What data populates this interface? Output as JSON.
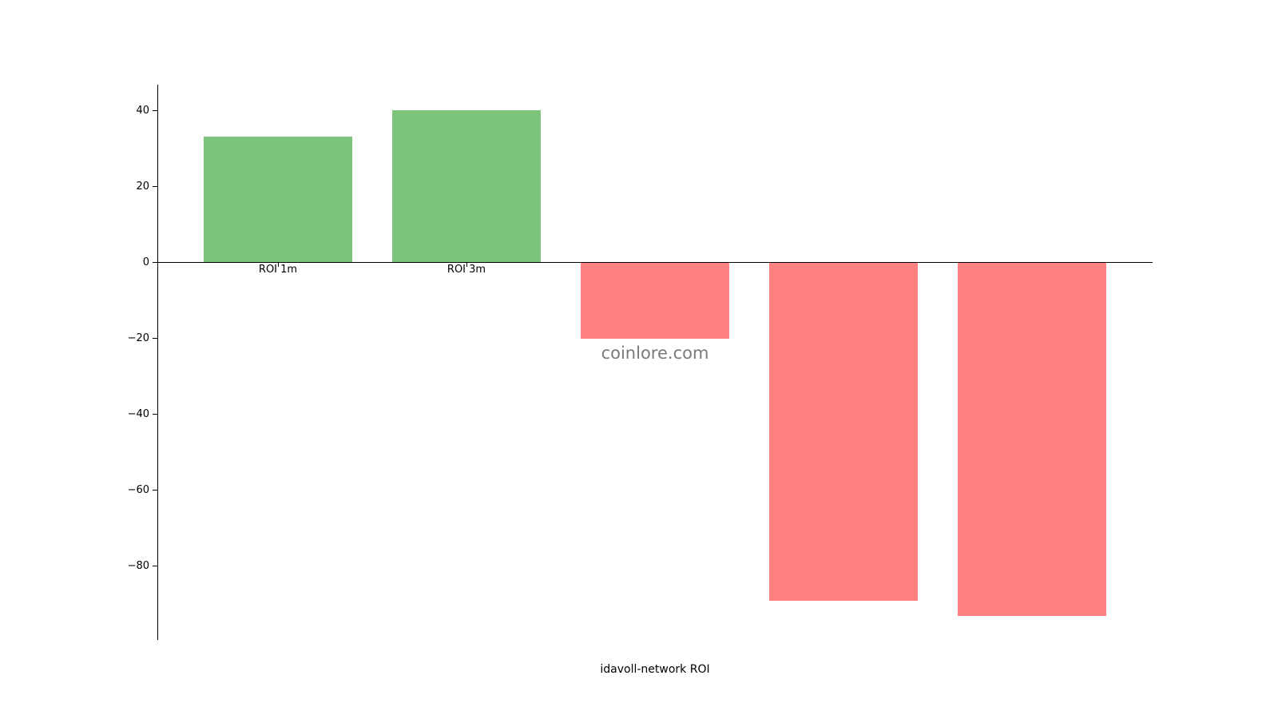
{
  "page": {
    "background": "#ffffff"
  },
  "chart_data": {
    "type": "bar",
    "title": "idavoll-network ROI",
    "watermark": "coinlore.com",
    "xlabel": "",
    "ylabel": "",
    "grid": false,
    "legend": null,
    "ylim": [
      -99.6,
      46.7
    ],
    "categories": [
      "ROI 1m",
      "ROI 3m",
      "",
      "",
      ""
    ],
    "series": [
      {
        "label": "ROI 1m",
        "value": 33,
        "color": "#7cc47c",
        "label_visible": true
      },
      {
        "label": "ROI 3m",
        "value": 40,
        "color": "#7cc47c",
        "label_visible": true
      },
      {
        "label": "",
        "value": -20,
        "color": "#ff8181",
        "label_visible": false
      },
      {
        "label": "",
        "value": -89,
        "color": "#ff8181",
        "label_visible": false
      },
      {
        "label": "",
        "value": -93,
        "color": "#ff8181",
        "label_visible": false
      }
    ],
    "y_ticks": [
      {
        "value": 40,
        "label": "40"
      },
      {
        "value": 20,
        "label": "20"
      },
      {
        "value": 0,
        "label": "0"
      },
      {
        "value": -20,
        "label": "−20"
      },
      {
        "value": -40,
        "label": "−40"
      },
      {
        "value": -60,
        "label": "−60"
      },
      {
        "value": -80,
        "label": "−80"
      }
    ],
    "colors": {
      "positive": "#7cc47c",
      "negative": "#ff8181",
      "axis": "#000000",
      "watermark_text": "#7a7a7a",
      "title_text": "#000000"
    }
  }
}
